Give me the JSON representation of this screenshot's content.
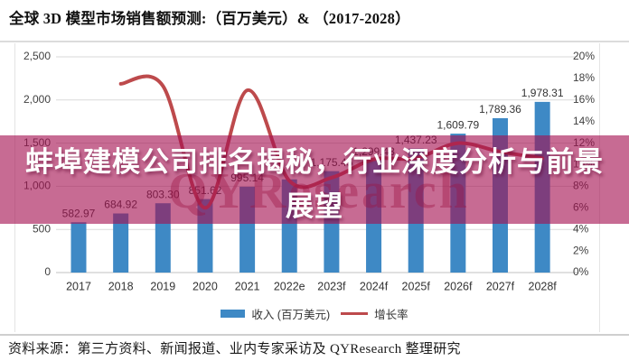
{
  "title": "全球 3D 模型市场销售额预测:（百万美元）& （2017-2028）",
  "overlay": {
    "line1": "蚌埠建模公司排名揭秘，行业深度分析与前景",
    "line2": "展望",
    "bg_color": "#A41050",
    "bg_opacity": 0.62,
    "text_color": "#FFFFFF"
  },
  "watermark": "QYResearch",
  "source_note": "资料来源：第三方资料、新闻报道、业内专家采访及 QYResearch 整理研究",
  "legend": {
    "revenue_label": "收入 (百万美元)",
    "growth_label": "增长率"
  },
  "colors": {
    "bar": "#3E89C5",
    "line": "#BD4A4C",
    "grid": "#DADADA",
    "axis_line": "#C0C0C0",
    "tick_text": "#404040",
    "bar_label_text": "#333333"
  },
  "chart_data": {
    "type": "bar",
    "combo_line": true,
    "title": "全球 3D 模型市场销售额预测:（百万美元）& （2017-2028）",
    "categories": [
      "2017",
      "2018",
      "2019",
      "2020",
      "2021",
      "2022e",
      "2023f",
      "2024f",
      "2025f",
      "2026f",
      "2027f",
      "2028f"
    ],
    "series": [
      {
        "name": "收入 (百万美元)",
        "type": "bar",
        "axis": "left",
        "values": [
          582.97,
          684.92,
          803.3,
          851.62,
          995.14,
          1080,
          1175.45,
          1299.43,
          1437.23,
          1609.79,
          1789.36,
          1978.31
        ],
        "value_labels": [
          "582.97",
          "684.92",
          "803.30",
          "851.62",
          "995.14",
          "",
          "1,175.45",
          "1,299.43",
          "1,437.23",
          "1,609.79",
          "1,789.36",
          "1,978.31"
        ]
      },
      {
        "name": "增长率",
        "type": "line",
        "axis": "right",
        "values": [
          null,
          17.5,
          17.3,
          6.0,
          16.9,
          8.5,
          8.8,
          10.5,
          10.6,
          12.0,
          11.2,
          10.6
        ]
      }
    ],
    "left_axis": {
      "min": 0,
      "max": 2500,
      "step": 500,
      "ticks": [
        "0",
        "500",
        "1,000",
        "1,500",
        "2,000",
        "2,500"
      ]
    },
    "right_axis": {
      "min": 0,
      "max": 20,
      "step": 2,
      "ticks": [
        "0%",
        "2%",
        "4%",
        "6%",
        "8%",
        "10%",
        "12%",
        "14%",
        "16%",
        "18%",
        "20%"
      ]
    },
    "grid": "horizontal",
    "legend_position": "bottom",
    "notes": "2022e bar top and its value label are hidden behind the pink overlay banner; value estimated from bar silhouette. Growth-rate values behind the banner estimated from bar ratios."
  }
}
